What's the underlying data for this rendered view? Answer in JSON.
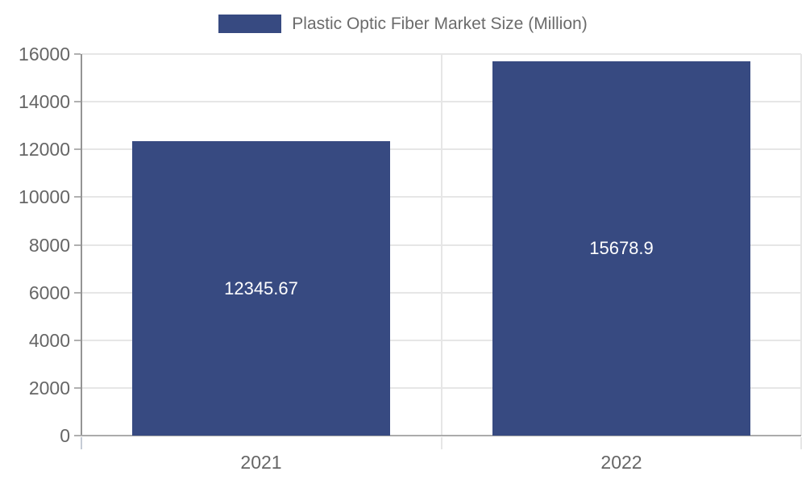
{
  "legend": {
    "label": "Plastic Optic Fiber Market Size (Million)"
  },
  "colors": {
    "bar": "#374A81",
    "grid": "#E6E6E6",
    "axis_y": "#949494",
    "axis_x": "#ABABAB",
    "tick": "#B0B0B0",
    "tick_below_axis_left": "#C5CBD5",
    "tick_label": "#666666",
    "legend_text": "#6B6B6B",
    "bar_label": "#FFFFFF"
  },
  "chart_data": {
    "type": "bar",
    "title": "Plastic Optic Fiber Market Size (Million)",
    "categories": [
      "2021",
      "2022"
    ],
    "series": [
      {
        "name": "Plastic Optic Fiber Market Size (Million)",
        "values": [
          12345.67,
          15678.9
        ],
        "labels": [
          "12345.67",
          "15678.9"
        ],
        "color": "#374A81"
      }
    ],
    "xlabel": "",
    "ylabel": "",
    "ylim": [
      0,
      16000
    ],
    "ytick_step": 2000,
    "yticks": [
      "0",
      "2000",
      "4000",
      "6000",
      "8000",
      "10000",
      "12000",
      "14000",
      "16000"
    ],
    "grid": true,
    "legend_position": "top-center",
    "bar_value_labels_inside": true
  }
}
